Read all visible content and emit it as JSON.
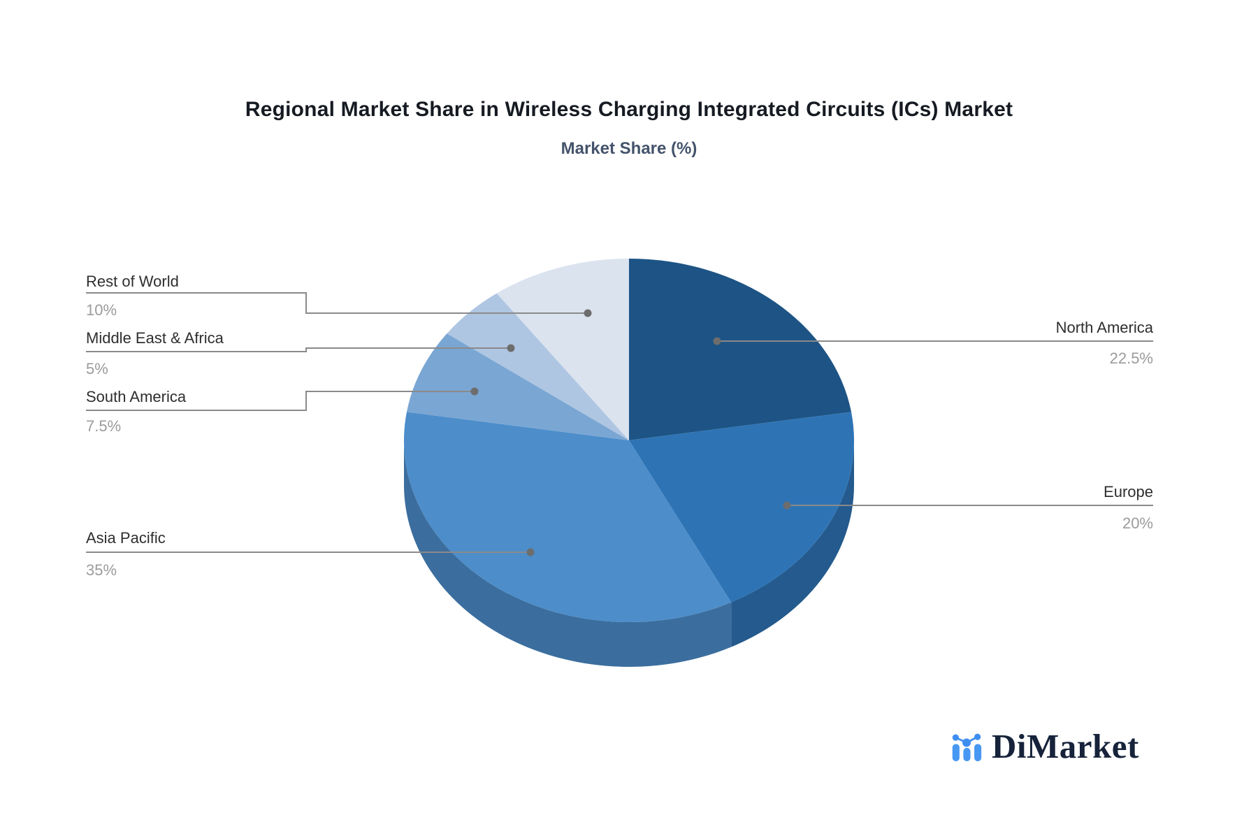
{
  "title": "Regional Market Share in Wireless Charging Integrated Circuits (ICs) Market",
  "subtitle": "Market Share (%)",
  "watermark": {
    "brand": "DiMarket",
    "icon": "bar-line-chart-icon"
  },
  "chart_data": {
    "type": "pie",
    "title": "Regional Market Share in Wireless Charging Integrated Circuits (ICs) Market",
    "subtitle": "Market Share (%)",
    "unit": "%",
    "start_angle_deg": 0,
    "direction": "clockwise",
    "style": "3d",
    "legend_position": "none",
    "categories": [
      "North America",
      "Europe",
      "Asia Pacific",
      "South America",
      "Middle East & Africa",
      "Rest of World"
    ],
    "values": [
      22.5,
      20,
      35,
      7.5,
      5,
      10
    ],
    "slices": [
      {
        "label": "North America",
        "value": 22.5,
        "display": "22.5%",
        "color": "#1d5485",
        "label_side": "right"
      },
      {
        "label": "Europe",
        "value": 20,
        "display": "20%",
        "color": "#2e74b5",
        "label_side": "right"
      },
      {
        "label": "Asia Pacific",
        "value": 35,
        "display": "35%",
        "color": "#4c8dca",
        "label_side": "left"
      },
      {
        "label": "South America",
        "value": 7.5,
        "display": "7.5%",
        "color": "#7aa6d3",
        "label_side": "left"
      },
      {
        "label": "Middle East & Africa",
        "value": 5,
        "display": "5%",
        "color": "#aec6e2",
        "label_side": "left"
      },
      {
        "label": "Rest of World",
        "value": 10,
        "display": "10%",
        "color": "#dbe3ef",
        "label_side": "left"
      }
    ],
    "colors": {
      "background": "#ffffff",
      "connector": "#8a8a8a",
      "dot": "#6d6d6d",
      "label_text": "#2e2e2e",
      "value_text": "#9b9b9b",
      "title_text": "#161a22",
      "subtitle_text": "#44536b",
      "brand_text": "#16233a",
      "brand_icon": "#4798f3"
    }
  }
}
